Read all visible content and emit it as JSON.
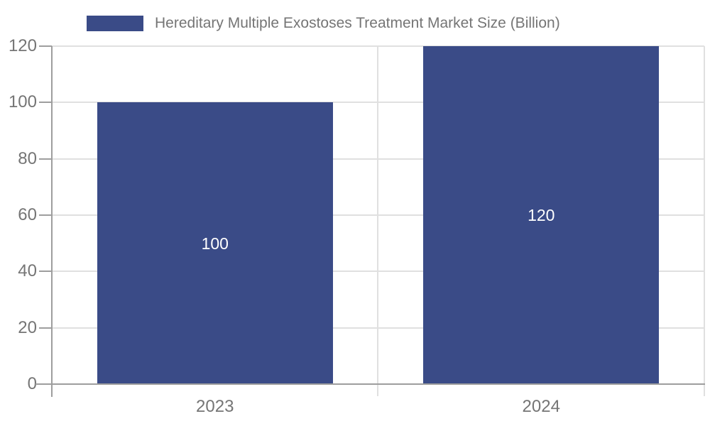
{
  "legend": {
    "label": "Hereditary Multiple Exostoses Treatment Market Size (Billion)"
  },
  "chart_data": {
    "type": "bar",
    "title": "Hereditary Multiple Exostoses Treatment Market Size (Billion)",
    "categories": [
      "2023",
      "2024"
    ],
    "values": [
      100,
      120
    ],
    "data_labels": [
      "100",
      "120"
    ],
    "xlabel": "",
    "ylabel": "",
    "ylim": [
      0,
      120
    ],
    "yticks": [
      0,
      20,
      40,
      60,
      80,
      100,
      120
    ],
    "grid": true,
    "legend_position": "top-center",
    "colors": {
      "bar": "#3A4B87",
      "data_label": "#FFFFFF",
      "axis_text": "#757575",
      "axis_line": "#9E9E9E",
      "gridline": "#E0E0E0",
      "background": "#FFFFFF"
    }
  }
}
